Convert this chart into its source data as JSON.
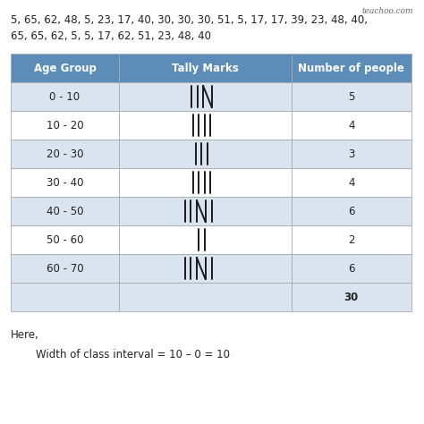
{
  "title_text": "5, 65, 62, 48, 5, 23, 17, 40, 30, 30, 30, 51, 5, 17, 17, 39, 23, 48, 40,",
  "title_text2": "65, 65, 62, 5, 5, 17, 62, 51, 23, 48, 40",
  "watermark": "teachoo.com",
  "header": [
    "Age Group",
    "Tally Marks",
    "Number of people"
  ],
  "rows": [
    [
      "0 - 10",
      "tally_5",
      "5"
    ],
    [
      "10 - 20",
      "tally_4",
      "4"
    ],
    [
      "20 - 30",
      "tally_3",
      "3"
    ],
    [
      "30 - 40",
      "tally_4",
      "4"
    ],
    [
      "40 - 50",
      "tally_6",
      "6"
    ],
    [
      "50 - 60",
      "tally_2",
      "2"
    ],
    [
      "60 - 70",
      "tally_6",
      "6"
    ]
  ],
  "total_label": "30",
  "footer_line1": "Here,",
  "footer_line2": "Width of class interval = 10 – 0 = 10",
  "header_bg": "#5b8db8",
  "header_fg": "#ffffff",
  "row_bg_alt": "#d9e4f0",
  "row_bg_white": "#ffffff",
  "total_bg": "#d9e4f0",
  "border_color": "#aaaaaa",
  "header_fontsize": 8.5,
  "cell_fontsize": 8.5,
  "title_fontsize": 8.5,
  "footer_fontsize": 8.5,
  "tally_lw": 1.4
}
